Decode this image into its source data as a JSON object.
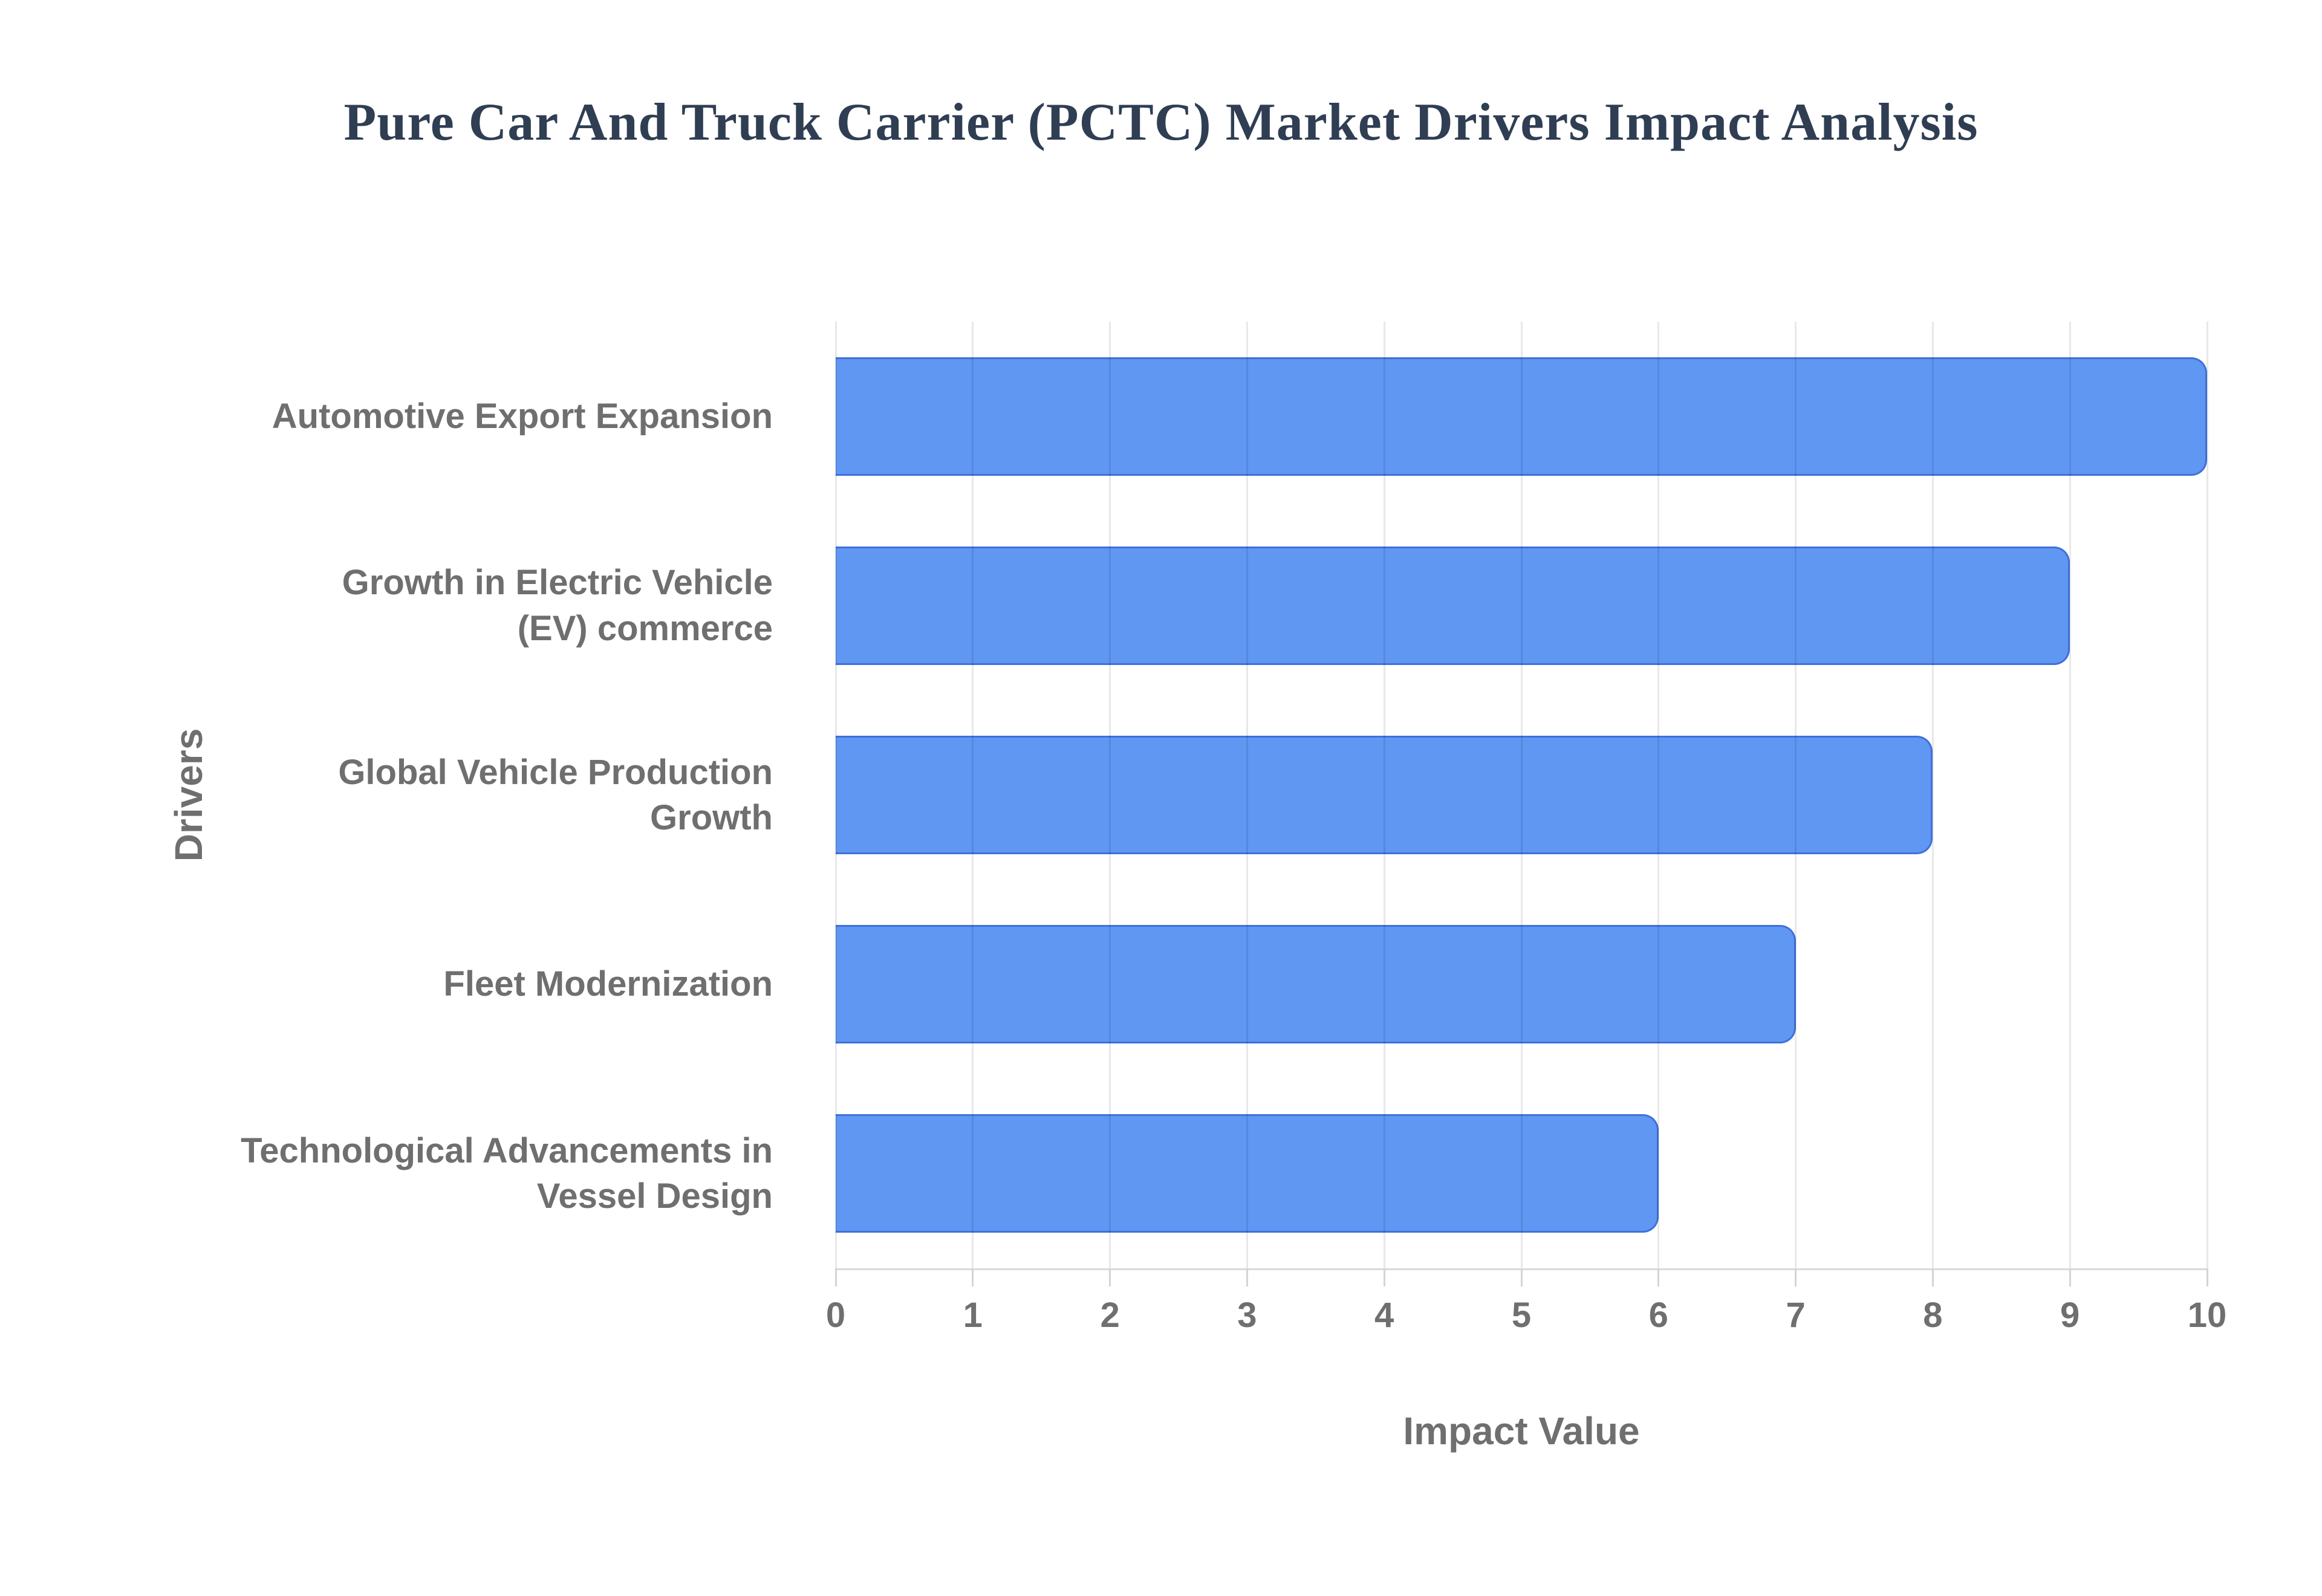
{
  "chart_data": {
    "type": "bar",
    "orientation": "horizontal",
    "title": "Pure Car And Truck Carrier (PCTC) Market Drivers Impact Analysis",
    "categories": [
      "Automotive Export Expansion",
      "Growth in Electric Vehicle (EV) commerce",
      "Global Vehicle Production Growth",
      "Fleet Modernization",
      "Technological Advancements in Vessel Design"
    ],
    "category_display_lines": [
      [
        "Automotive Export Expansion"
      ],
      [
        "Growth in Electric Vehicle",
        "(EV) commerce"
      ],
      [
        "Global Vehicle Production",
        "Growth"
      ],
      [
        "Fleet Modernization"
      ],
      [
        "Technological Advancements in",
        "Vessel Design"
      ]
    ],
    "values": [
      10,
      9,
      8,
      7,
      6
    ],
    "xlabel": "Impact Value",
    "ylabel": "Drivers",
    "xlim": [
      0,
      10
    ],
    "xticks": [
      0,
      1,
      2,
      3,
      4,
      5,
      6,
      7,
      8,
      9,
      10
    ],
    "grid": true,
    "legend": "none"
  },
  "colors": {
    "background": "#ffffff",
    "title_text": "#2f3e53",
    "axis_text": "#6f6f6f",
    "gridline": "rgba(0,0,0,0.09)",
    "axis_line": "#d9d9d9",
    "bar_fill": "#5f97f3",
    "bar_border": "#3f70d9"
  }
}
